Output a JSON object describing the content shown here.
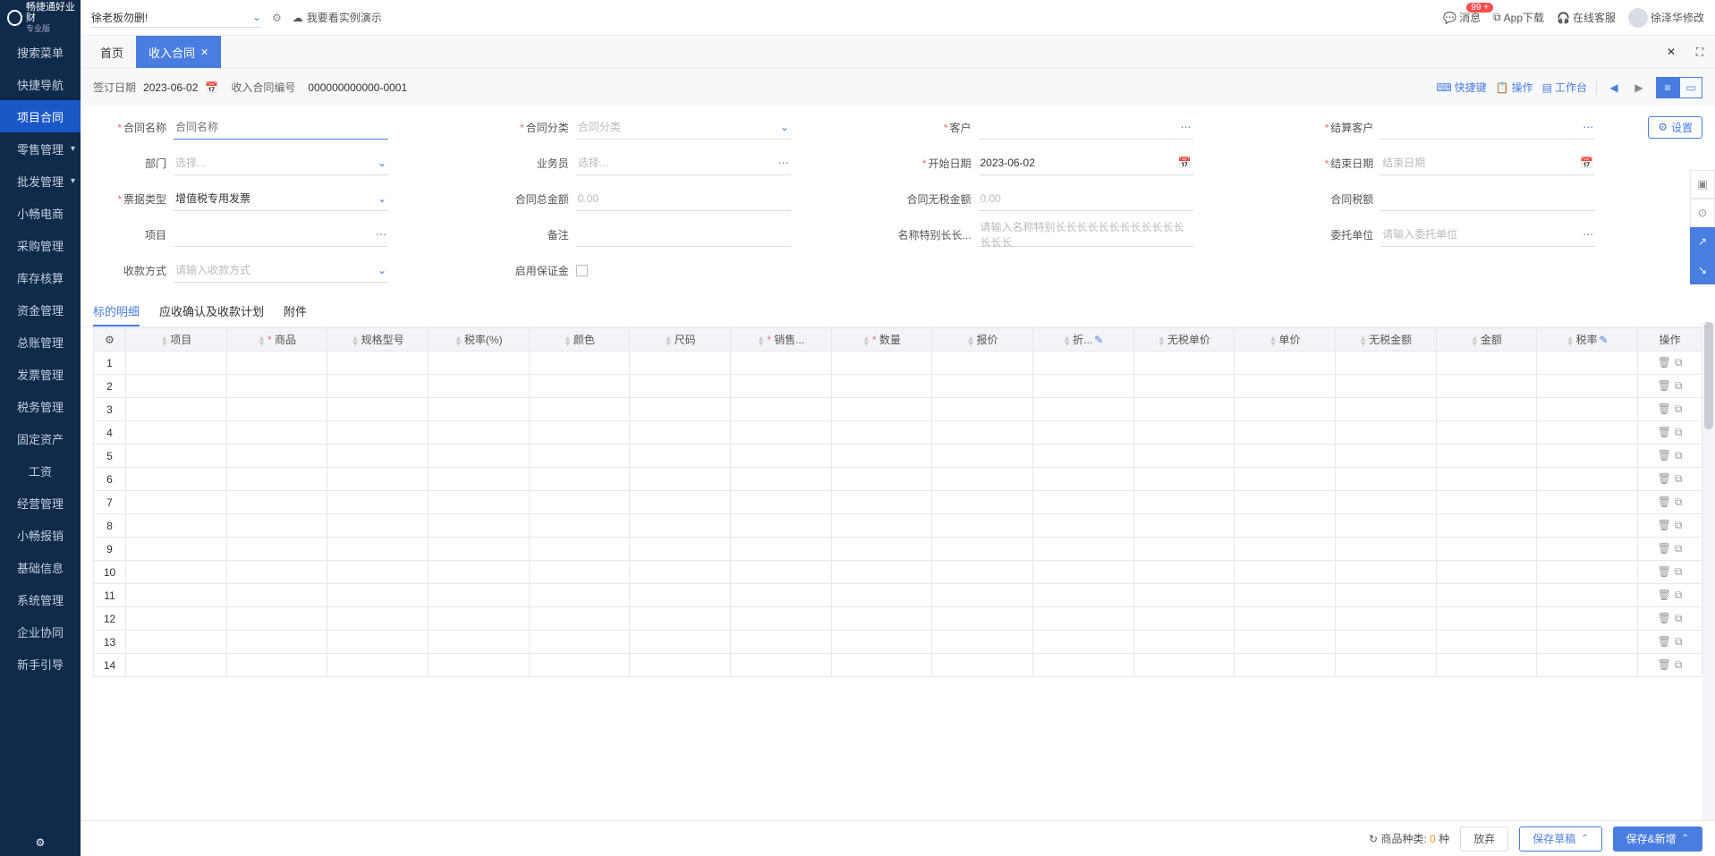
{
  "logo": {
    "name": "畅捷通好业财",
    "edition": "专业版"
  },
  "sidebar": {
    "items": [
      {
        "label": "搜索菜单"
      },
      {
        "label": "快捷导航"
      },
      {
        "label": "项目合同",
        "active": true
      },
      {
        "label": "零售管理",
        "expandable": true
      },
      {
        "label": "批发管理",
        "expandable": true
      },
      {
        "label": "小畅电商"
      },
      {
        "label": "采购管理"
      },
      {
        "label": "库存核算"
      },
      {
        "label": "资金管理"
      },
      {
        "label": "总账管理"
      },
      {
        "label": "发票管理"
      },
      {
        "label": "税务管理"
      },
      {
        "label": "固定资产"
      },
      {
        "label": "工资"
      },
      {
        "label": "经营管理"
      },
      {
        "label": "小畅报销"
      },
      {
        "label": "基础信息"
      },
      {
        "label": "系统管理"
      },
      {
        "label": "企业协同"
      },
      {
        "label": "新手引导"
      }
    ]
  },
  "topbar": {
    "account": "徐老板勿删!",
    "demo": "我要看实例演示",
    "message": "消息",
    "message_badge": "99 +",
    "download": "App下载",
    "support": "在线客服",
    "user": "徐泽华修改"
  },
  "tabs": {
    "home": "首页",
    "current": "收入合同"
  },
  "toolbar": {
    "sign_date_label": "签订日期",
    "sign_date": "2023-06-02",
    "contract_no_label": "收入合同编号",
    "contract_no": "000000000000-0001",
    "shortcut": "快捷键",
    "operate": "操作",
    "workbench": "工作台"
  },
  "form": {
    "row1": {
      "name_label": "合同名称",
      "name_ph": "合同名称",
      "class_label": "合同分类",
      "class_ph": "合同分类",
      "customer_label": "客户",
      "settle_label": "结算客户",
      "settings": "设置"
    },
    "row2": {
      "dept_label": "部门",
      "dept_ph": "选择...",
      "sales_label": "业务员",
      "sales_ph": "选择...",
      "start_label": "开始日期",
      "start_val": "2023-06-02",
      "end_label": "结束日期",
      "end_ph": "结束日期"
    },
    "row3": {
      "invoice_label": "票据类型",
      "invoice_val": "增值税专用发票",
      "total_label": "合同总金额",
      "total_ph": "0.00",
      "notax_label": "合同无税金额",
      "notax_ph": "0.00",
      "tax_label": "合同税额"
    },
    "row4": {
      "project_label": "项目",
      "remark_label": "备注",
      "longname_label": "名称特别长长...",
      "longname_ph": "请输入名称特别长长长长长长长长长长长长长长长",
      "entrust_label": "委托单位",
      "entrust_ph": "请输入委托单位"
    },
    "row5": {
      "paytype_label": "收款方式",
      "paytype_ph": "请输入收款方式",
      "deposit_label": "启用保证金"
    }
  },
  "subtabs": {
    "a": "标的明细",
    "b": "应收确认及收款计划",
    "c": "附件"
  },
  "table": {
    "cols": [
      "项目",
      "商品",
      "规格型号",
      "税率(%)",
      "颜色",
      "尺码",
      "销售...",
      "数量",
      "报价",
      "折...",
      "无税单价",
      "单价",
      "无税金额",
      "金额",
      "税率"
    ],
    "required": [
      false,
      true,
      false,
      false,
      false,
      false,
      true,
      true,
      false,
      false,
      false,
      false,
      false,
      false,
      false
    ],
    "editable": [
      false,
      false,
      false,
      false,
      false,
      false,
      false,
      false,
      false,
      true,
      false,
      false,
      false,
      false,
      true
    ],
    "action_head": "操作",
    "row_count": 14
  },
  "footer": {
    "kinds_label": "商品种类:",
    "kinds_val": "0",
    "kinds_unit": "种",
    "discard": "放弃",
    "draft": "保存草稿",
    "save": "保存&新增"
  },
  "colors": {
    "sidebar_bg": "#0f2a4a",
    "primary": "#4a7de0",
    "required": "#f56c6c",
    "badge": "#ff4d4f"
  }
}
